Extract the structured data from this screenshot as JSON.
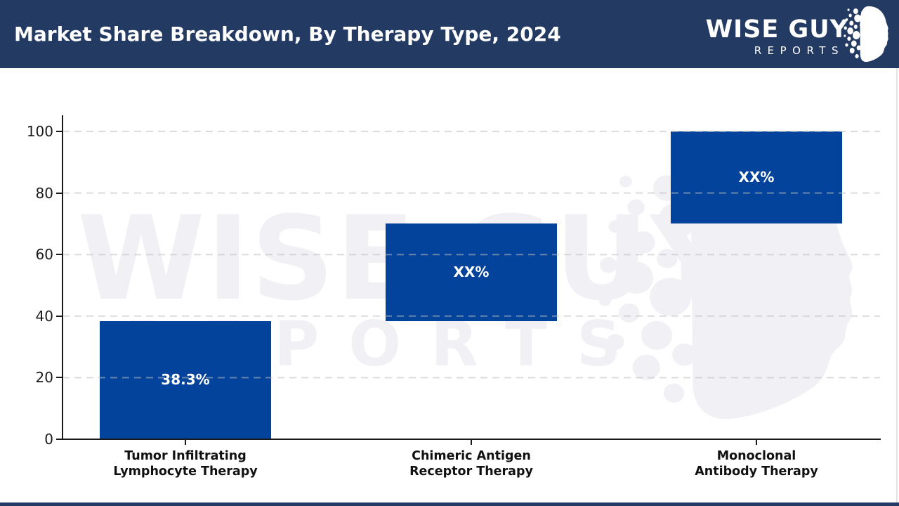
{
  "header": {
    "title": "Market Share Breakdown, By Therapy Type, 2024",
    "bg_color": "#233a63",
    "logo": {
      "wordmark": "WISE GUY",
      "sub": "REPORTS"
    }
  },
  "watermark": {
    "wordmark": "WISE GUY",
    "sub": "REPORTS"
  },
  "chart_data": {
    "type": "bar",
    "subtype": "waterfall-segments",
    "title": "Market Share Breakdown, By Therapy Type, 2024",
    "categories": [
      "Tumor Infiltrating Lymphocyte Therapy",
      "Chimeric Antigen Receptor Therapy",
      "Monoclonal Antibody Therapy"
    ],
    "segments": [
      {
        "category_line1": "Tumor Infiltrating",
        "category_line2": "Lymphocyte Therapy",
        "start": 0,
        "end": 38.3,
        "label": "38.3%"
      },
      {
        "category_line1": "Chimeric Antigen",
        "category_line2": "Receptor Therapy",
        "start": 38.3,
        "end": 70,
        "label": "XX%"
      },
      {
        "category_line1": "Monoclonal",
        "category_line2": "Antibody Therapy",
        "start": 70,
        "end": 100,
        "label": "XX%"
      }
    ],
    "y_ticks": [
      0,
      20,
      40,
      60,
      80,
      100
    ],
    "ylim": [
      0,
      100
    ],
    "grid": {
      "axis": "y",
      "style": "dashed"
    },
    "legend": "none",
    "bar_color": "#04439b",
    "bar_label_color": "#ffffff",
    "axis_color": "#1a1a1a"
  }
}
